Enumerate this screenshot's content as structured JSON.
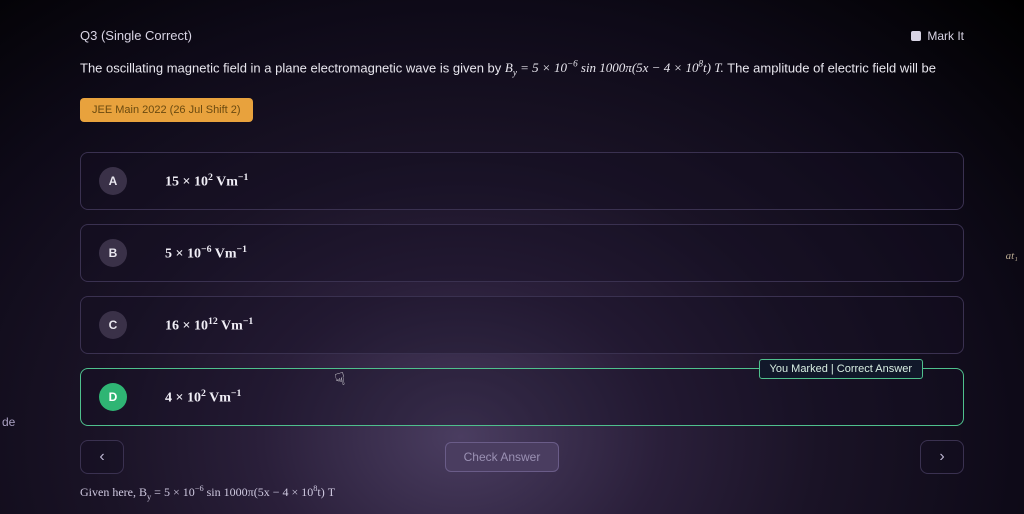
{
  "header": {
    "question_number": "Q3 (Single Correct)",
    "mark_label": "Mark It"
  },
  "question": {
    "pretext": "The oscillating magnetic field in a plane electromagnetic wave is given by ",
    "formula_html": "B<sub>y</sub> = 5 × 10<sup>−6</sup> sin 1000π(5x − 4 × 10<sup>8</sup>t) T.",
    "posttext": " The amplitude of electric field will be"
  },
  "tag": "JEE Main 2022 (26 Jul Shift 2)",
  "options": [
    {
      "letter": "A",
      "text_html": "15 × 10<sup>2</sup> Vm<sup>−1</sup>",
      "correct": false
    },
    {
      "letter": "B",
      "text_html": "5 × 10<sup>−6</sup> Vm<sup>−1</sup>",
      "correct": false
    },
    {
      "letter": "C",
      "text_html": "16 × 10<sup>12</sup> Vm<sup>−1</sup>",
      "correct": false
    },
    {
      "letter": "D",
      "text_html": "4 × 10<sup>2</sup> Vm<sup>−1</sup>",
      "correct": true
    }
  ],
  "correct_label": "You Marked | Correct Answer",
  "nav": {
    "prev": "‹",
    "next": "›",
    "check": "Check Answer"
  },
  "footer_html": "Given here, B<sub>y</sub> = 5 × 10<sup>−6</sup> sin 1000π(5x − 4 × 10<sup>8</sup>t) T",
  "side_labels": {
    "left": "de",
    "right": "at₁"
  },
  "colors": {
    "accent_orange": "#e8a23d",
    "correct_green": "#2fb574",
    "border_green": "#4fc08d",
    "border_default": "#3a3150",
    "letter_bg": "#3a3148"
  }
}
